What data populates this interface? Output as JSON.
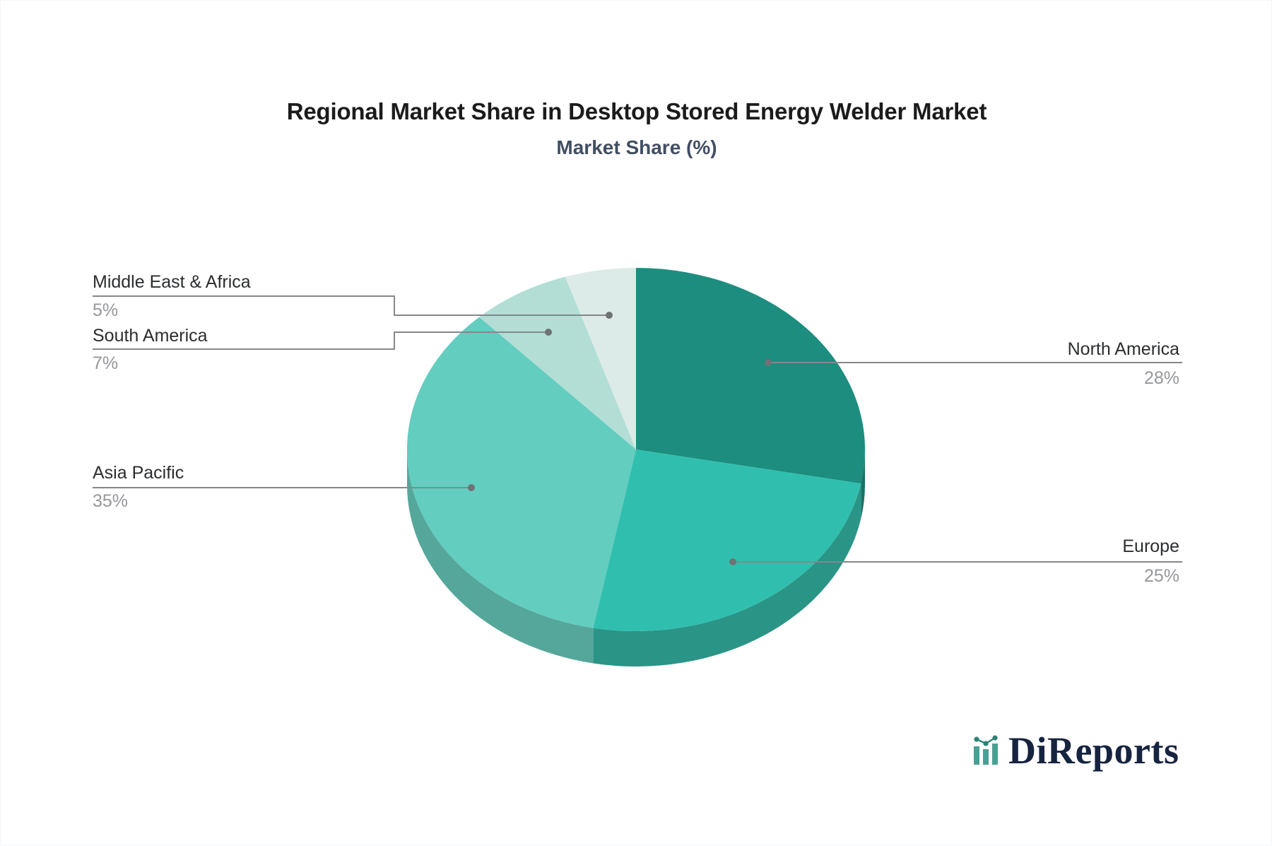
{
  "title": "Regional Market Share in Desktop Stored Energy Welder Market",
  "subtitle": "Market Share (%)",
  "chart_data": {
    "type": "pie",
    "style": "3d",
    "title": "Regional Market Share in Desktop Stored Energy Welder Market",
    "subtitle": "Market Share (%)",
    "unit": "%",
    "labels": [
      "North America",
      "Europe",
      "Asia Pacific",
      "South America",
      "Middle East & Africa"
    ],
    "values": [
      28,
      25,
      35,
      7,
      5
    ],
    "colors": [
      "#1d8d7f",
      "#30bfae",
      "#63cdbf",
      "#b2ded6",
      "#dcebe7"
    ],
    "side_colors": [
      "#1a7265",
      "#2a9487",
      "#55a79b",
      null,
      null
    ],
    "start_angle_deg": 0,
    "direction": "clockwise",
    "legend_position": "callout-labels",
    "leader_line_color": "#85878a",
    "leader_dot_color": "#707275"
  },
  "callouts": {
    "north_america": {
      "label": "North America",
      "value": "28%"
    },
    "europe": {
      "label": "Europe",
      "value": "25%"
    },
    "asia_pacific": {
      "label": "Asia Pacific",
      "value": "35%"
    },
    "south_america": {
      "label": "South America",
      "value": "7%"
    },
    "middle_east_africa": {
      "label": "Middle East & Africa",
      "value": "5%"
    }
  },
  "logo": {
    "text": "DiReports",
    "icon": "bar-chart-logo-icon",
    "text_color": "#172440",
    "bar_color": "#48a093",
    "dot_color": "#2c8375"
  }
}
